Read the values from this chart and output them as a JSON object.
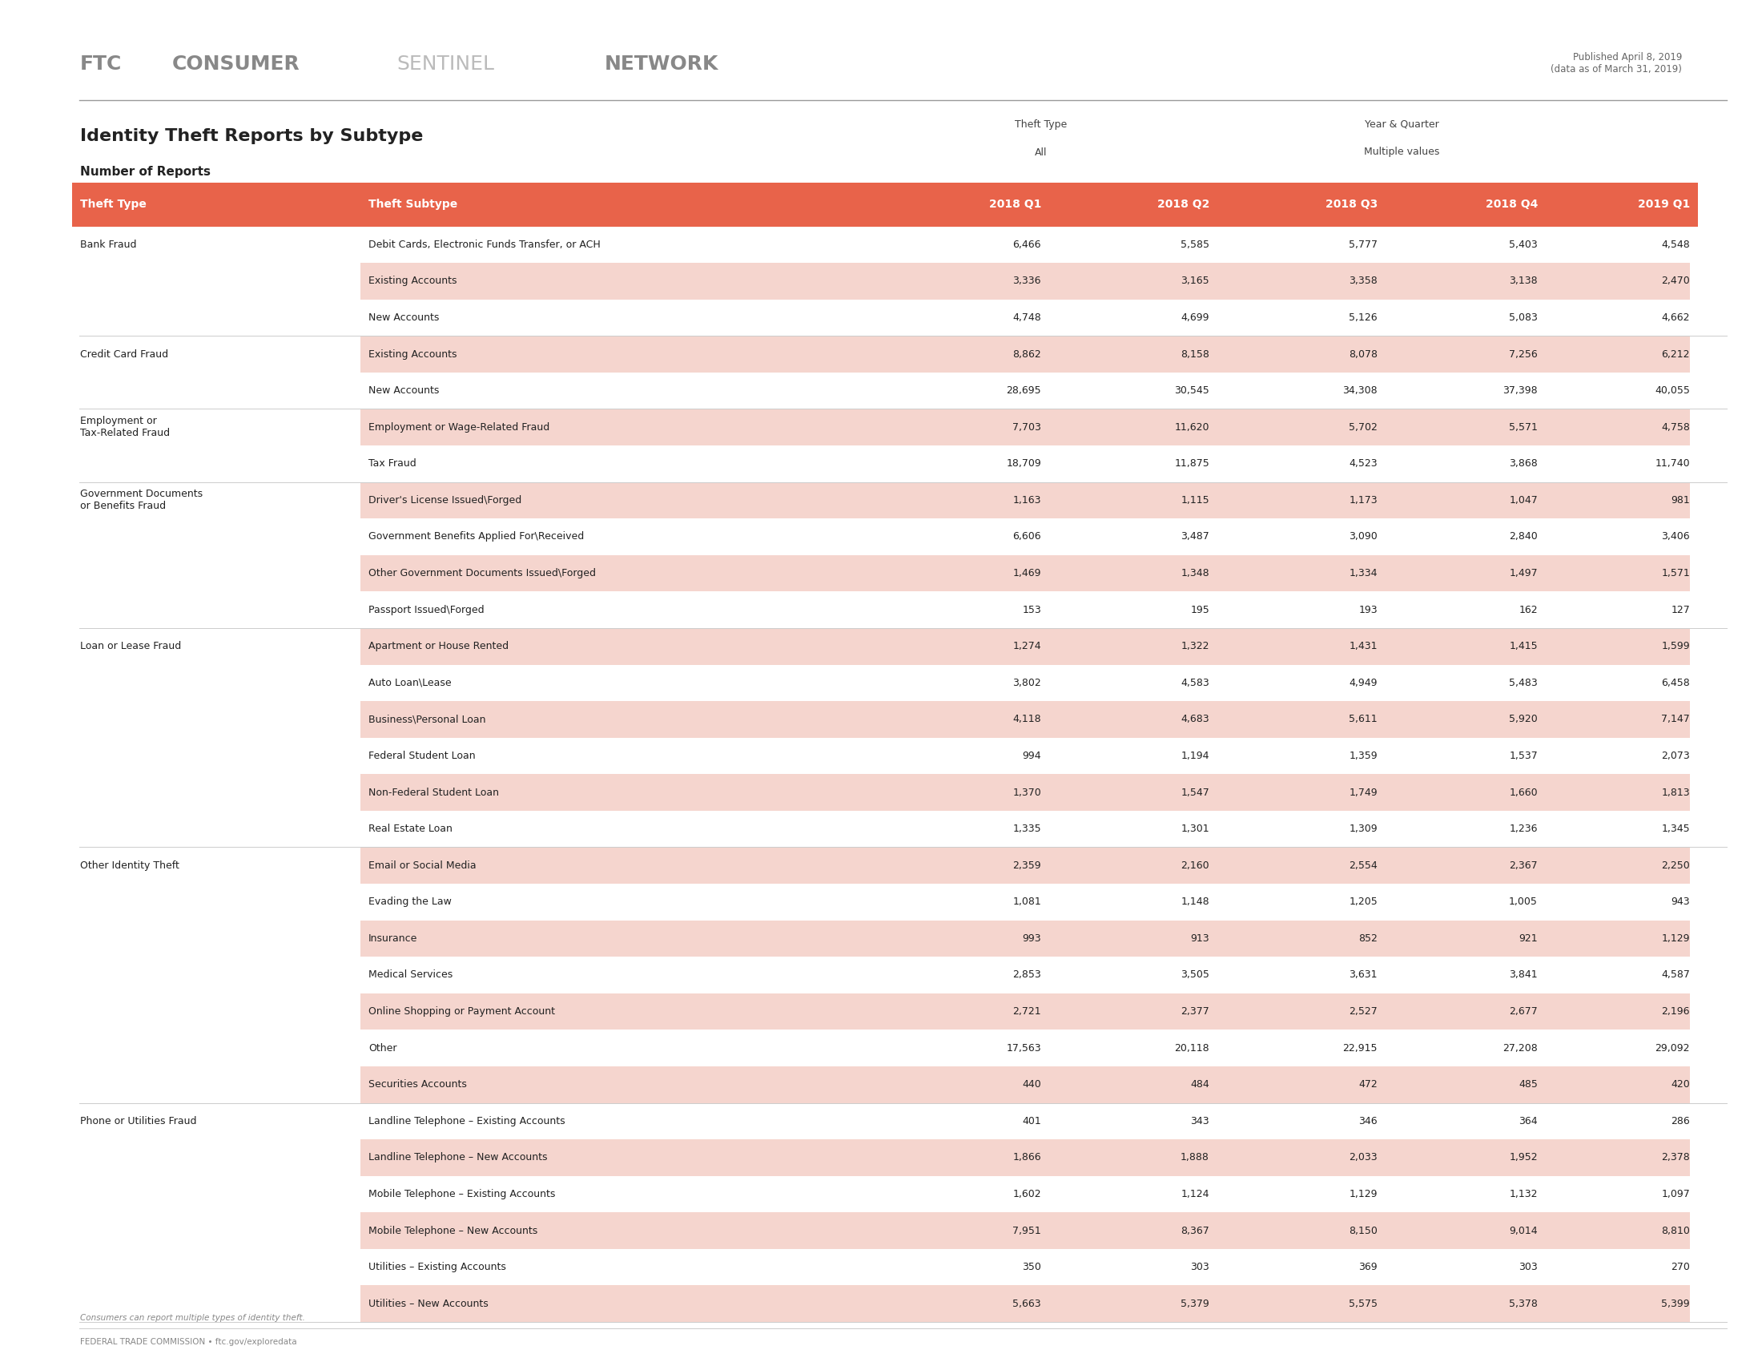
{
  "title": "Identity Theft Reports by Subtype",
  "subtitle": "Number of Reports",
  "header_text1": "Theft Type",
  "header_text2": "All",
  "header_text3": "Year & Quarter",
  "header_text4": "Multiple values",
  "published": "Published April 8, 2019\n(data as of March 31, 2019)",
  "footer1": "Consumers can report multiple types of identity theft.",
  "footer2": "FEDERAL TRADE COMMISSION • ftc.gov/exploredata",
  "brand_ftc": "FTC",
  "brand_consumer": "CONSUMER",
  "brand_sentinel": "SENTINEL",
  "brand_network": "NETWORK",
  "col_headers": [
    "Theft Type",
    "Theft Subtype",
    "2018 Q1",
    "2018 Q2",
    "2018 Q3",
    "2018 Q4",
    "2019 Q1"
  ],
  "rows": [
    {
      "type": "Bank Fraud",
      "subtype": "Debit Cards, Electronic Funds Transfer, or ACH",
      "q1_2018": "6,466",
      "q2_2018": "5,585",
      "q3_2018": "5,777",
      "q4_2018": "5,403",
      "q1_2019": "4,548",
      "shaded": false
    },
    {
      "type": "",
      "subtype": "Existing Accounts",
      "q1_2018": "3,336",
      "q2_2018": "3,165",
      "q3_2018": "3,358",
      "q4_2018": "3,138",
      "q1_2019": "2,470",
      "shaded": true
    },
    {
      "type": "",
      "subtype": "New Accounts",
      "q1_2018": "4,748",
      "q2_2018": "4,699",
      "q3_2018": "5,126",
      "q4_2018": "5,083",
      "q1_2019": "4,662",
      "shaded": false
    },
    {
      "type": "Credit Card Fraud",
      "subtype": "Existing Accounts",
      "q1_2018": "8,862",
      "q2_2018": "8,158",
      "q3_2018": "8,078",
      "q4_2018": "7,256",
      "q1_2019": "6,212",
      "shaded": true
    },
    {
      "type": "",
      "subtype": "New Accounts",
      "q1_2018": "28,695",
      "q2_2018": "30,545",
      "q3_2018": "34,308",
      "q4_2018": "37,398",
      "q1_2019": "40,055",
      "shaded": false
    },
    {
      "type": "Employment or\nTax-Related Fraud",
      "subtype": "Employment or Wage-Related Fraud",
      "q1_2018": "7,703",
      "q2_2018": "11,620",
      "q3_2018": "5,702",
      "q4_2018": "5,571",
      "q1_2019": "4,758",
      "shaded": true
    },
    {
      "type": "",
      "subtype": "Tax Fraud",
      "q1_2018": "18,709",
      "q2_2018": "11,875",
      "q3_2018": "4,523",
      "q4_2018": "3,868",
      "q1_2019": "11,740",
      "shaded": false
    },
    {
      "type": "Government Documents\nor Benefits Fraud",
      "subtype": "Driver's License Issued\\Forged",
      "q1_2018": "1,163",
      "q2_2018": "1,115",
      "q3_2018": "1,173",
      "q4_2018": "1,047",
      "q1_2019": "981",
      "shaded": true
    },
    {
      "type": "",
      "subtype": "Government Benefits Applied For\\Received",
      "q1_2018": "6,606",
      "q2_2018": "3,487",
      "q3_2018": "3,090",
      "q4_2018": "2,840",
      "q1_2019": "3,406",
      "shaded": false
    },
    {
      "type": "",
      "subtype": "Other Government Documents Issued\\Forged",
      "q1_2018": "1,469",
      "q2_2018": "1,348",
      "q3_2018": "1,334",
      "q4_2018": "1,497",
      "q1_2019": "1,571",
      "shaded": true
    },
    {
      "type": "",
      "subtype": "Passport Issued\\Forged",
      "q1_2018": "153",
      "q2_2018": "195",
      "q3_2018": "193",
      "q4_2018": "162",
      "q1_2019": "127",
      "shaded": false
    },
    {
      "type": "Loan or Lease Fraud",
      "subtype": "Apartment or House Rented",
      "q1_2018": "1,274",
      "q2_2018": "1,322",
      "q3_2018": "1,431",
      "q4_2018": "1,415",
      "q1_2019": "1,599",
      "shaded": true
    },
    {
      "type": "",
      "subtype": "Auto Loan\\Lease",
      "q1_2018": "3,802",
      "q2_2018": "4,583",
      "q3_2018": "4,949",
      "q4_2018": "5,483",
      "q1_2019": "6,458",
      "shaded": false
    },
    {
      "type": "",
      "subtype": "Business\\Personal Loan",
      "q1_2018": "4,118",
      "q2_2018": "4,683",
      "q3_2018": "5,611",
      "q4_2018": "5,920",
      "q1_2019": "7,147",
      "shaded": true
    },
    {
      "type": "",
      "subtype": "Federal Student Loan",
      "q1_2018": "994",
      "q2_2018": "1,194",
      "q3_2018": "1,359",
      "q4_2018": "1,537",
      "q1_2019": "2,073",
      "shaded": false
    },
    {
      "type": "",
      "subtype": "Non-Federal Student Loan",
      "q1_2018": "1,370",
      "q2_2018": "1,547",
      "q3_2018": "1,749",
      "q4_2018": "1,660",
      "q1_2019": "1,813",
      "shaded": true
    },
    {
      "type": "",
      "subtype": "Real Estate Loan",
      "q1_2018": "1,335",
      "q2_2018": "1,301",
      "q3_2018": "1,309",
      "q4_2018": "1,236",
      "q1_2019": "1,345",
      "shaded": false
    },
    {
      "type": "Other Identity Theft",
      "subtype": "Email or Social Media",
      "q1_2018": "2,359",
      "q2_2018": "2,160",
      "q3_2018": "2,554",
      "q4_2018": "2,367",
      "q1_2019": "2,250",
      "shaded": true
    },
    {
      "type": "",
      "subtype": "Evading the Law",
      "q1_2018": "1,081",
      "q2_2018": "1,148",
      "q3_2018": "1,205",
      "q4_2018": "1,005",
      "q1_2019": "943",
      "shaded": false
    },
    {
      "type": "",
      "subtype": "Insurance",
      "q1_2018": "993",
      "q2_2018": "913",
      "q3_2018": "852",
      "q4_2018": "921",
      "q1_2019": "1,129",
      "shaded": true
    },
    {
      "type": "",
      "subtype": "Medical Services",
      "q1_2018": "2,853",
      "q2_2018": "3,505",
      "q3_2018": "3,631",
      "q4_2018": "3,841",
      "q1_2019": "4,587",
      "shaded": false
    },
    {
      "type": "",
      "subtype": "Online Shopping or Payment Account",
      "q1_2018": "2,721",
      "q2_2018": "2,377",
      "q3_2018": "2,527",
      "q4_2018": "2,677",
      "q1_2019": "2,196",
      "shaded": true
    },
    {
      "type": "",
      "subtype": "Other",
      "q1_2018": "17,563",
      "q2_2018": "20,118",
      "q3_2018": "22,915",
      "q4_2018": "27,208",
      "q1_2019": "29,092",
      "shaded": false
    },
    {
      "type": "",
      "subtype": "Securities Accounts",
      "q1_2018": "440",
      "q2_2018": "484",
      "q3_2018": "472",
      "q4_2018": "485",
      "q1_2019": "420",
      "shaded": true
    },
    {
      "type": "Phone or Utilities Fraud",
      "subtype": "Landline Telephone – Existing Accounts",
      "q1_2018": "401",
      "q2_2018": "343",
      "q3_2018": "346",
      "q4_2018": "364",
      "q1_2019": "286",
      "shaded": false
    },
    {
      "type": "",
      "subtype": "Landline Telephone – New Accounts",
      "q1_2018": "1,866",
      "q2_2018": "1,888",
      "q3_2018": "2,033",
      "q4_2018": "1,952",
      "q1_2019": "2,378",
      "shaded": true
    },
    {
      "type": "",
      "subtype": "Mobile Telephone – Existing Accounts",
      "q1_2018": "1,602",
      "q2_2018": "1,124",
      "q3_2018": "1,129",
      "q4_2018": "1,132",
      "q1_2019": "1,097",
      "shaded": false
    },
    {
      "type": "",
      "subtype": "Mobile Telephone – New Accounts",
      "q1_2018": "7,951",
      "q2_2018": "8,367",
      "q3_2018": "8,150",
      "q4_2018": "9,014",
      "q1_2019": "8,810",
      "shaded": true
    },
    {
      "type": "",
      "subtype": "Utilities – Existing Accounts",
      "q1_2018": "350",
      "q2_2018": "303",
      "q3_2018": "369",
      "q4_2018": "303",
      "q1_2019": "270",
      "shaded": false
    },
    {
      "type": "",
      "subtype": "Utilities – New Accounts",
      "q1_2018": "5,663",
      "q2_2018": "5,379",
      "q3_2018": "5,575",
      "q4_2018": "5,378",
      "q1_2019": "5,399",
      "shaded": true
    }
  ],
  "header_bg": "#E8634A",
  "shaded_bg": "#F5D5CE",
  "white_bg": "#FFFFFF",
  "header_text_color": "#FFFFFF",
  "body_text_color": "#222222",
  "separator_line_color": "#AAAAAA",
  "brand_color_bold": "#888888",
  "brand_color_light": "#BBBBBB"
}
